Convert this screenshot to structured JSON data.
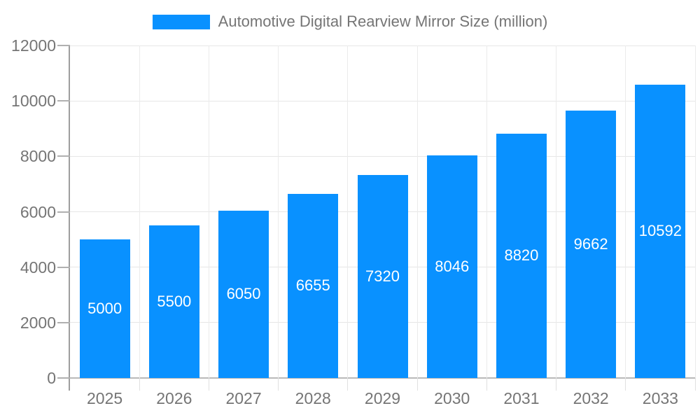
{
  "chart_data": {
    "type": "bar",
    "title": "Automotive Digital Rearview Mirror Size (million)",
    "categories": [
      "2025",
      "2026",
      "2027",
      "2028",
      "2029",
      "2030",
      "2031",
      "2032",
      "2033"
    ],
    "series": [
      {
        "name": "Automotive Digital Rearview Mirror Size (million)",
        "values": [
          5000,
          5500,
          6050,
          6655,
          7320,
          8046,
          8820,
          9662,
          10592
        ]
      }
    ],
    "bar_value_labels": [
      "5000",
      "5500",
      "6050",
      "6655",
      "7320",
      "8046",
      "8820",
      "9662",
      "10592"
    ],
    "xlabel": "",
    "ylabel": "",
    "ylim": [
      0,
      12000
    ],
    "yticks": [
      0,
      2000,
      4000,
      6000,
      8000,
      10000,
      12000
    ],
    "grid": true,
    "legend_position": "top",
    "colors": {
      "bar": "#0991ff",
      "bar_label": "#ffffff",
      "axis_text": "#757575",
      "axis_line": "#9e9e9e",
      "gridline": "#e6e6e6",
      "vgridline": "#ebebeb",
      "tick": "#b0b0b0",
      "category_tick": "#e0e0e0",
      "baseline": "#b9b9b9",
      "background": "#ffffff"
    }
  },
  "legend": {
    "label": "Automotive Digital Rearview Mirror Size (million)",
    "swatch_color": "#0991ff"
  }
}
